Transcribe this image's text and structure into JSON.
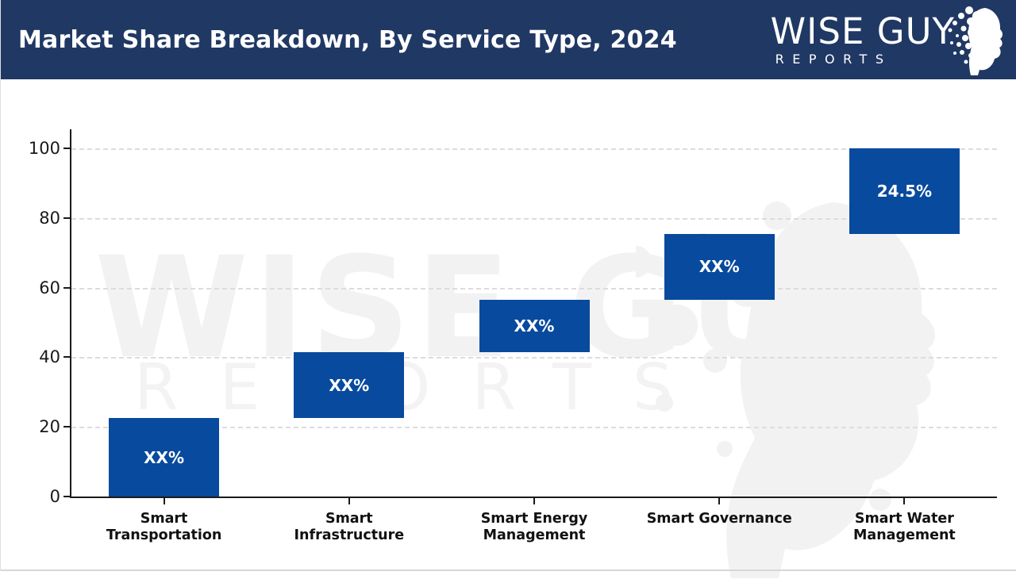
{
  "header": {
    "title": "Market Share Breakdown, By Service Type, 2024",
    "logo": {
      "line1": "WISE GUY",
      "line2": "REPORTS"
    }
  },
  "watermark": {
    "line1": "WISE GUY",
    "line2": "REPORTS"
  },
  "chart_data": {
    "type": "bar",
    "subtype": "floating-segment-bars (cumulative market share)",
    "title": "Market Share Breakdown, By Service Type, 2024",
    "categories": [
      "Smart Transportation",
      "Smart Infrastructure",
      "Smart Energy Management",
      "Smart Governance",
      "Smart Water Management"
    ],
    "category_label_lines": [
      [
        "Smart",
        "Transportation"
      ],
      [
        "Smart",
        "Infrastructure"
      ],
      [
        "Smart Energy",
        "Management"
      ],
      [
        "Smart Governance"
      ],
      [
        "Smart Water",
        "Management"
      ]
    ],
    "bars": [
      {
        "category": "Smart Transportation",
        "start": 0,
        "end": 22.5,
        "label": "XX%"
      },
      {
        "category": "Smart Infrastructure",
        "start": 22.5,
        "end": 41.5,
        "label": "XX%"
      },
      {
        "category": "Smart Energy Management",
        "start": 41.5,
        "end": 56.5,
        "label": "XX%"
      },
      {
        "category": "Smart Governance",
        "start": 56.5,
        "end": 75.5,
        "label": "XX%"
      },
      {
        "category": "Smart Water Management",
        "start": 75.5,
        "end": 100,
        "label": "24.5%"
      }
    ],
    "xlabel": "",
    "ylabel": "",
    "yticks": [
      0,
      20,
      40,
      60,
      80,
      100
    ],
    "ylim": [
      0,
      105.5
    ],
    "grid": "horizontal dashed",
    "legend": "none",
    "colors": {
      "bar": "#084a9d",
      "bar_label": "#ffffff",
      "header_bg": "#203864",
      "grid": "#dcdcdc",
      "axis": "#1a1a1a",
      "watermark": "#f2f2f2"
    }
  }
}
